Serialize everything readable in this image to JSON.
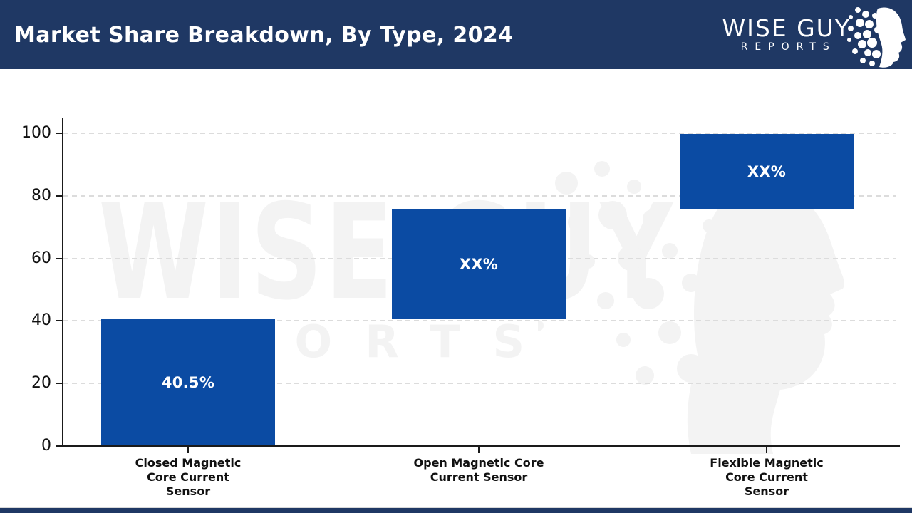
{
  "header": {
    "title": "Market Share Breakdown, By Type, 2024",
    "logo": {
      "wordmark": "WISE GUY",
      "subtitle": "REPORTS"
    }
  },
  "watermark": {
    "wordmark": "WISE GUY",
    "subtitle": "REPORTS"
  },
  "chart_data": {
    "type": "bar",
    "subtype": "waterfall-stacked",
    "title": "Market Share Breakdown, By Type, 2024",
    "categories": [
      "Closed Magnetic Core Current Sensor",
      "Open Magnetic Core Current Sensor",
      "Flexible Magnetic Core Current Sensor"
    ],
    "category_lines": [
      [
        "Closed Magnetic",
        "Core Current",
        "Sensor"
      ],
      [
        "Open Magnetic Core",
        "Current Sensor"
      ],
      [
        "Flexible Magnetic",
        "Core Current",
        "Sensor"
      ]
    ],
    "segments": [
      {
        "category": "Closed Magnetic Core Current Sensor",
        "start": 0,
        "end": 40.5,
        "label": "40.5%"
      },
      {
        "category": "Open Magnetic Core Current Sensor",
        "start": 40.5,
        "end": 75.8,
        "label": "XX%"
      },
      {
        "category": "Flexible Magnetic Core Current Sensor",
        "start": 75.8,
        "end": 99.8,
        "label": "XX%"
      }
    ],
    "xlabel": "",
    "ylabel": "",
    "ylim": [
      0,
      100
    ],
    "yticks": [
      0,
      20,
      40,
      60,
      80,
      100
    ],
    "grid": "horizontal-dashed",
    "legend": "none"
  },
  "colors": {
    "header_bg": "#1F3864",
    "footer_bg": "#1F3864",
    "bar": "#0B4BA3",
    "bar_label": "#FFFFFF",
    "axis": "#1A1A1A",
    "grid": "#DCDCDC",
    "tick_text": "#111111",
    "watermark": "#F3F3F3"
  }
}
